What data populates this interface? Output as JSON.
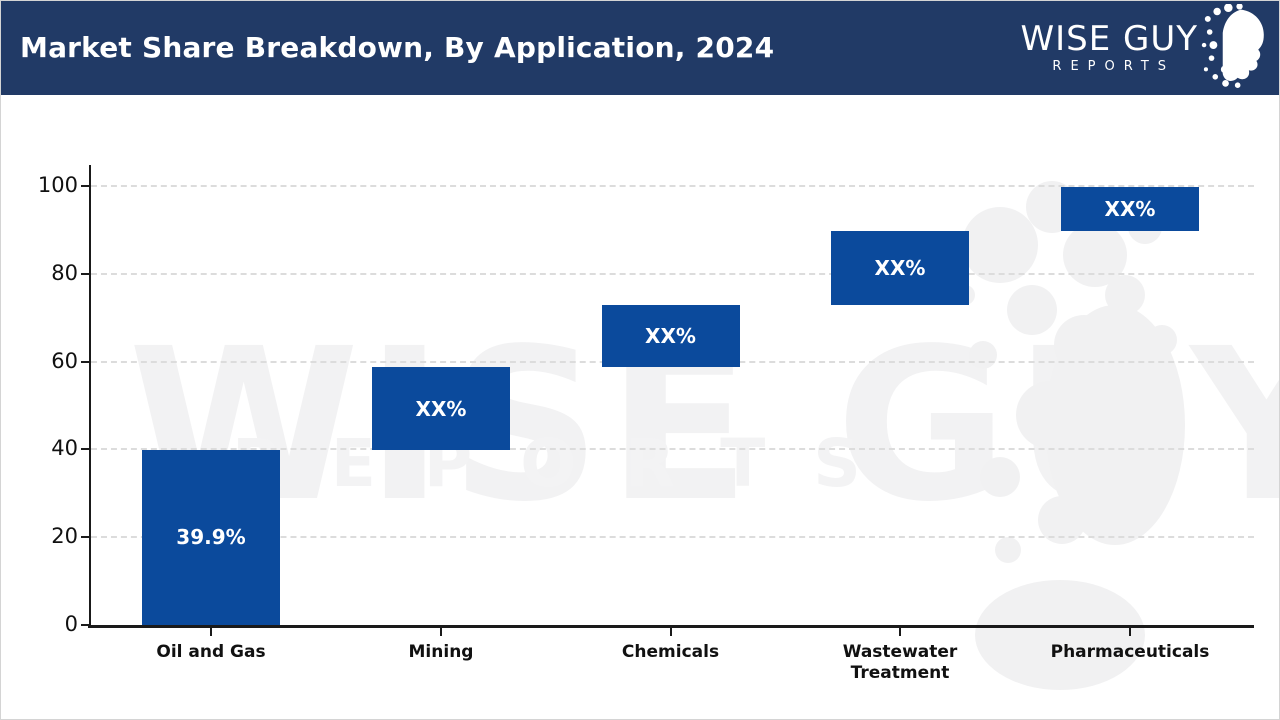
{
  "header": {
    "title": "Market Share Breakdown, By Application, 2024",
    "logo": {
      "line1": "WISE GUY",
      "line2": "REPORTS"
    }
  },
  "watermark": {
    "line1": "WISE GUY",
    "line2": "REPORTS"
  },
  "colors": {
    "header_bg": "#213a66",
    "bar_fill": "#0b4a9c",
    "bar_label": "#ffffff",
    "gridline": "#dcdcdc",
    "axis": "#1a1a1a",
    "watermark": "#f2f2f3"
  },
  "chart_data": {
    "type": "bar",
    "subtype": "waterfall",
    "title": "Market Share Breakdown, By Application, 2024",
    "categories": [
      "Oil and Gas",
      "Mining",
      "Chemicals",
      "Wastewater Treatment",
      "Pharmaceuticals"
    ],
    "xtick_labels": [
      "Oil and Gas",
      "Mining",
      "Chemicals",
      "Wastewater\nTreatment",
      "Pharmaceuticals"
    ],
    "bars": [
      {
        "category": "Oil and Gas",
        "start": 0,
        "end": 39.9,
        "label": "39.9%"
      },
      {
        "category": "Mining",
        "start": 39.9,
        "end": 58.7,
        "label": "XX%"
      },
      {
        "category": "Chemicals",
        "start": 58.7,
        "end": 72.9,
        "label": "XX%"
      },
      {
        "category": "Wastewater Treatment",
        "start": 72.9,
        "end": 89.7,
        "label": "XX%"
      },
      {
        "category": "Pharmaceuticals",
        "start": 89.7,
        "end": 99.7,
        "label": "XX%"
      }
    ],
    "yticks": [
      0,
      20,
      40,
      60,
      80,
      100
    ],
    "ylim": [
      0,
      104
    ],
    "xlabel": "",
    "ylabel": "",
    "grid": "horizontal-dashed",
    "legend": "none"
  }
}
